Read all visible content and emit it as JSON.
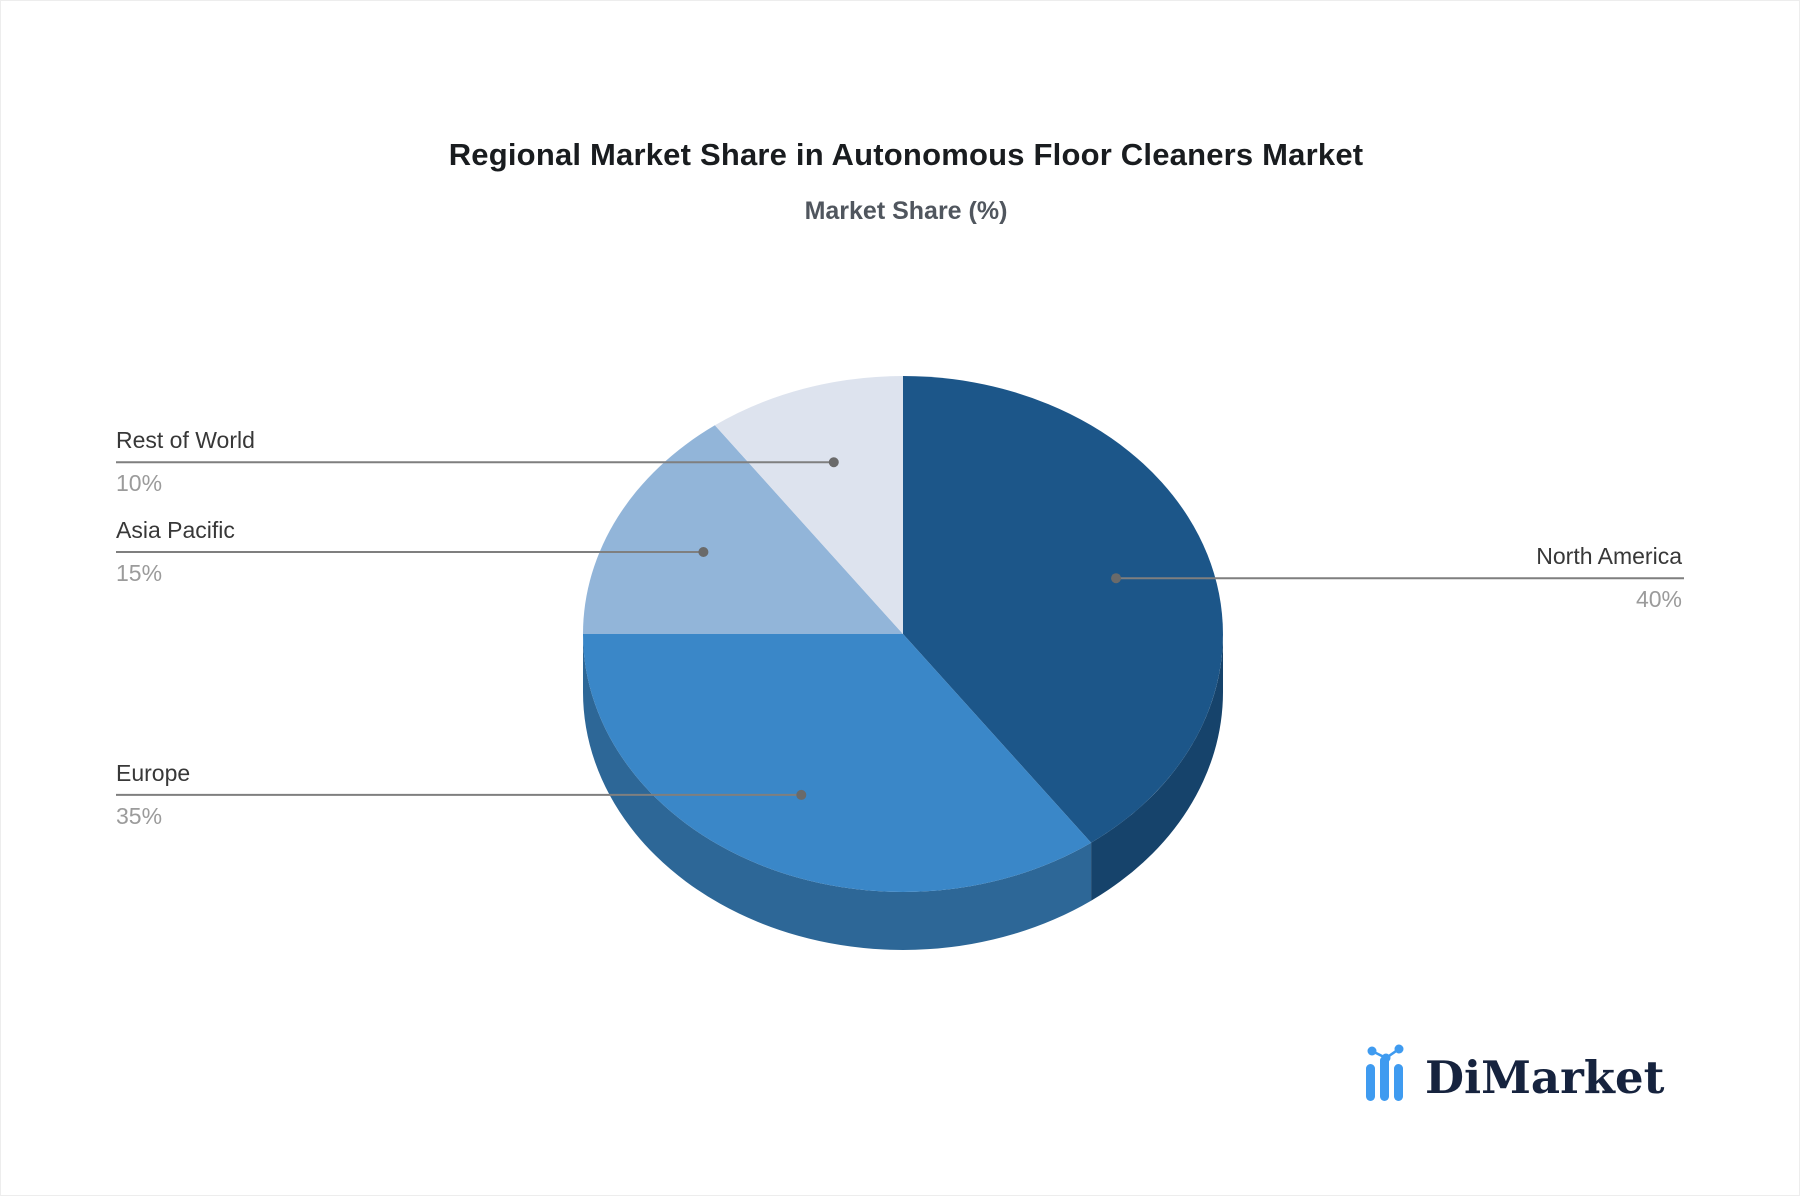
{
  "chart_data": {
    "type": "pie",
    "style": "3d",
    "title": "Regional Market Share in Autonomous Floor Cleaners Market",
    "subtitle": "Market Share (%)",
    "start_angle_deg": 0,
    "direction": "clockwise",
    "slices": [
      {
        "label": "North America",
        "value": 40,
        "pct_label": "40%",
        "color": "#1c5689",
        "side_color": "#16436b",
        "label_side": "right"
      },
      {
        "label": "Europe",
        "value": 35,
        "pct_label": "35%",
        "color": "#3a87c8",
        "side_color": "#2d6797",
        "label_side": "left"
      },
      {
        "label": "Asia Pacific",
        "value": 15,
        "pct_label": "15%",
        "color": "#92b5d9",
        "side_color": "#7693af",
        "label_side": "left"
      },
      {
        "label": "Rest of World",
        "value": 10,
        "pct_label": "10%",
        "color": "#dde3ee",
        "side_color": "#b8c0cd",
        "label_side": "left"
      }
    ],
    "leader_line_color": "#7f7f7f",
    "leader_dot_color": "#6a6a6a",
    "label_color": "#383838",
    "pct_color": "#9b9b9b",
    "legend": "none",
    "grid": false
  },
  "branding": {
    "name": "DiMarket",
    "icon": "bar-line-chart-icon",
    "icon_color": "#3f9bf0",
    "text_color": "#16233e"
  }
}
